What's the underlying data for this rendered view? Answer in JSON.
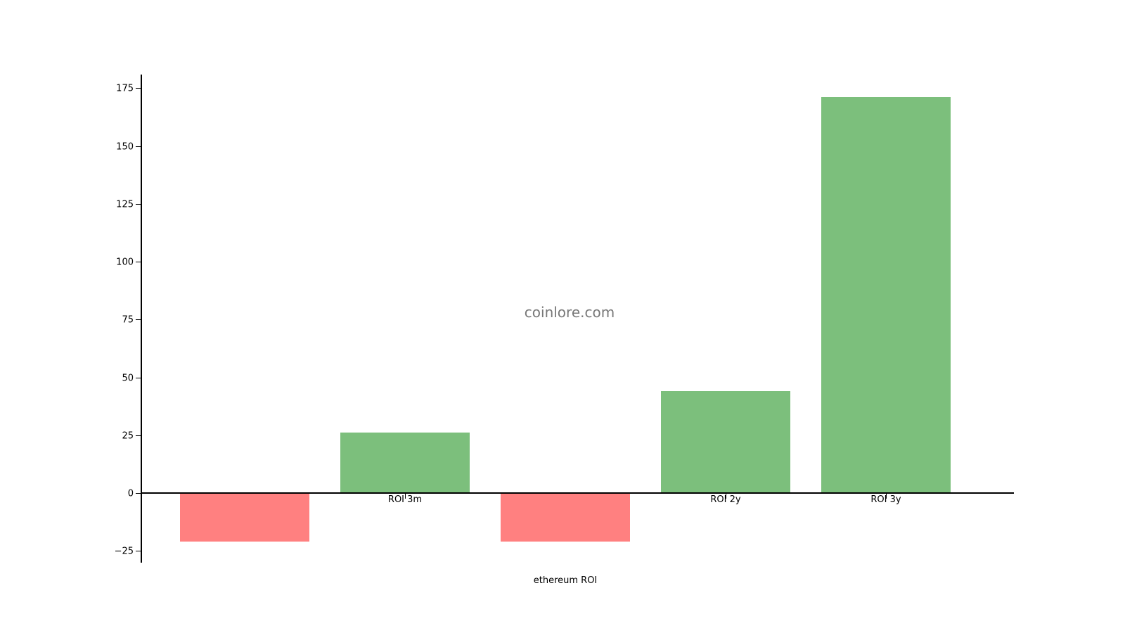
{
  "watermark": "coinlore.com",
  "chart_data": {
    "type": "bar",
    "title": "",
    "xlabel": "ethereum ROI",
    "ylabel": "",
    "categories": [
      "",
      "ROI 3m",
      "",
      "ROI 2y",
      "ROI 3y"
    ],
    "values": [
      -21,
      26,
      -21,
      44,
      171
    ],
    "bar_colors": [
      "#ff8080",
      "#7cbf7c",
      "#ff8080",
      "#7cbf7c",
      "#7cbf7c"
    ],
    "positive_color": "#7cbf7c",
    "negative_color": "#ff8080",
    "axis_color": "#000000",
    "watermark_color": "#787878",
    "yticks": [
      -25,
      0,
      25,
      50,
      75,
      100,
      125,
      150,
      175
    ],
    "ytick_labels": [
      "−25",
      "0",
      "25",
      "50",
      "75",
      "100",
      "125",
      "150",
      "175"
    ],
    "ylim": [
      -30,
      181
    ],
    "grid": false,
    "legend": null,
    "baseline": 0
  }
}
